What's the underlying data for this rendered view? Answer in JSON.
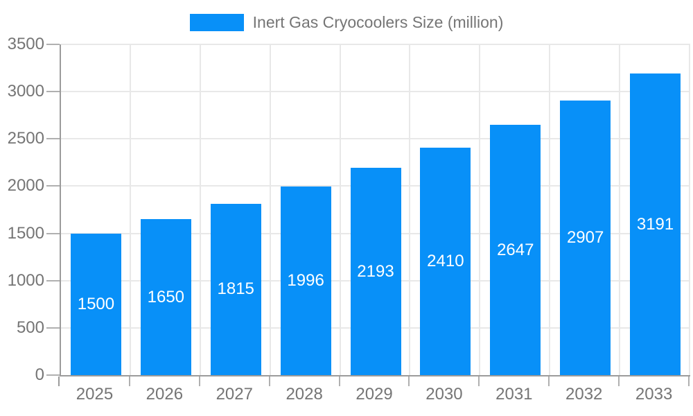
{
  "legend": {
    "label": "Inert Gas Cryocoolers Size (million)"
  },
  "chart_data": {
    "type": "bar",
    "title": "Inert Gas Cryocoolers Size (million)",
    "categories": [
      "2025",
      "2026",
      "2027",
      "2028",
      "2029",
      "2030",
      "2031",
      "2032",
      "2033"
    ],
    "series": [
      {
        "name": "Inert Gas Cryocoolers Size (million)",
        "values": [
          1500,
          1650,
          1815,
          1996,
          2193,
          2410,
          2647,
          2907,
          3191
        ]
      }
    ],
    "bar_labels_shown": true,
    "xlabel": "",
    "ylabel": "",
    "ylim": [
      0,
      3500
    ],
    "yticks": [
      0,
      500,
      1000,
      1500,
      2000,
      2500,
      3000,
      3500
    ],
    "grid": true,
    "legend_position": "top",
    "colors": {
      "bar": "#0890F8",
      "bar_label": "#ffffff",
      "grid": "#e8e8e8",
      "axis": "#9b9b9b",
      "tick": "#b0b0b0",
      "tick_label": "#757575",
      "legend_label": "#757575"
    }
  }
}
